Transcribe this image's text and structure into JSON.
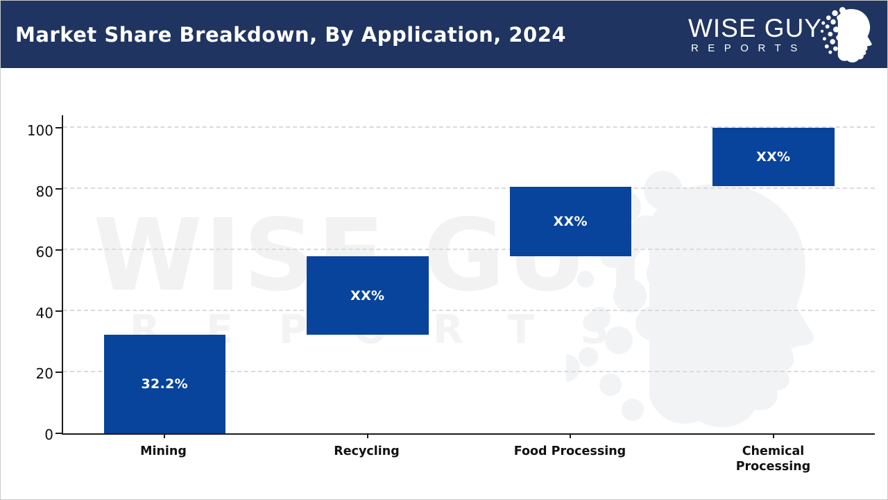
{
  "header": {
    "title": "Market Share Breakdown, By Application, 2024",
    "bg_color": "#1f3460",
    "brand": {
      "name": "WISE GUY",
      "sub": "REPORTS"
    }
  },
  "watermark": {
    "line1": "WISE GUY",
    "line2": "REPORTS"
  },
  "chart_data": {
    "type": "bar",
    "subtype": "waterfall",
    "title": "Market Share Breakdown, By Application, 2024",
    "xlabel": "",
    "ylabel": "",
    "ylim": [
      0,
      100
    ],
    "yticks": [
      0,
      20,
      40,
      60,
      80,
      100
    ],
    "grid": "horizontal-dashed",
    "legend": "none",
    "bar_color": "#08439c",
    "categories": [
      "Mining",
      "Recycling",
      "Food Processing",
      "Chemical Processing"
    ],
    "bars": [
      {
        "category": "Mining",
        "start": 0,
        "end": 32.2,
        "label": "32.2%"
      },
      {
        "category": "Recycling",
        "start": 32.2,
        "end": 58,
        "label": "XX%"
      },
      {
        "category": "Food Processing",
        "start": 58,
        "end": 80.8,
        "label": "XX%"
      },
      {
        "category": "Chemical Processing",
        "start": 80.8,
        "end": 100,
        "label": "XX%"
      }
    ]
  }
}
